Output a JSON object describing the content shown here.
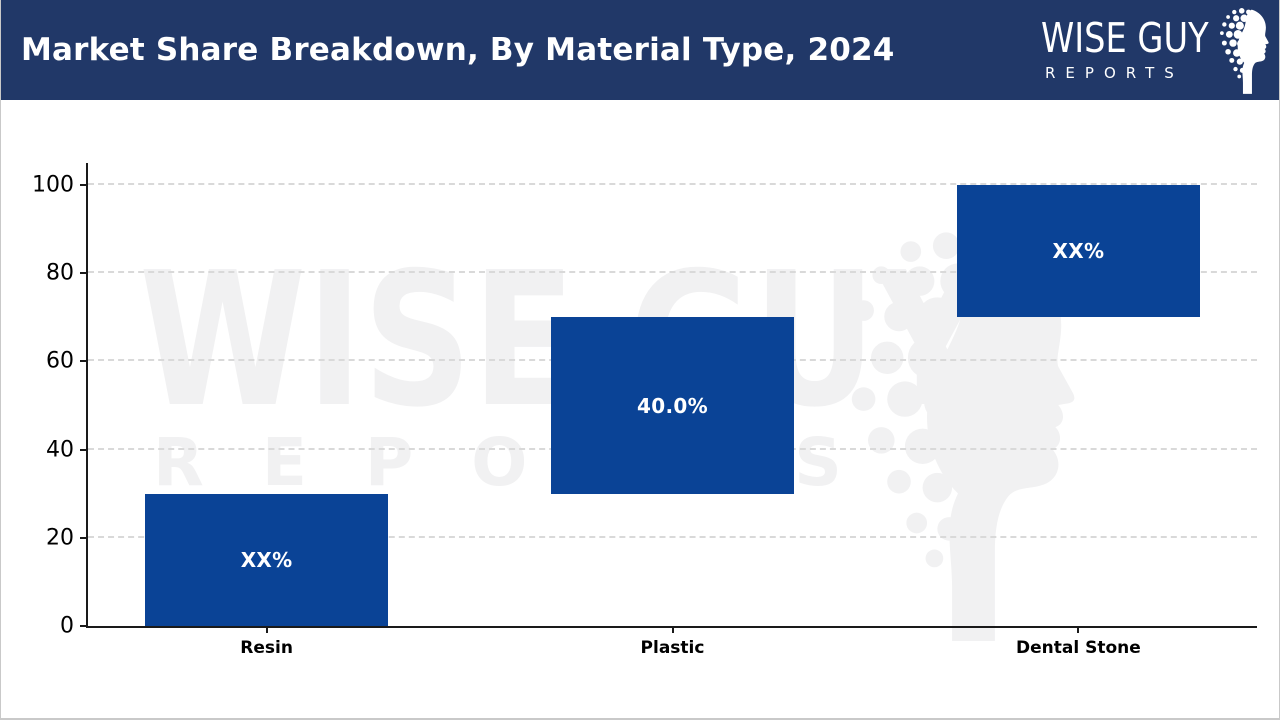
{
  "header": {
    "title": "Market Share Breakdown, By Material Type, 2024"
  },
  "logo": {
    "name": "WISE GUY",
    "tagline": "REPORTS"
  },
  "watermark": {
    "line1": "WISE GUY",
    "line2": "REPORTS"
  },
  "chart_data": {
    "type": "bar",
    "variant": "floating-segment-bar",
    "title": "Market Share Breakdown, By Material Type, 2024",
    "categories": [
      "Resin",
      "Plastic",
      "Dental Stone"
    ],
    "bars": [
      {
        "category": "Resin",
        "start": 0,
        "end": 30,
        "label": "XX%"
      },
      {
        "category": "Plastic",
        "start": 30,
        "end": 70,
        "label": "40.0%"
      },
      {
        "category": "Dental Stone",
        "start": 70,
        "end": 100,
        "label": "XX%"
      }
    ],
    "yticks": [
      0,
      20,
      40,
      60,
      80,
      100
    ],
    "ylim": [
      0,
      105
    ],
    "xlim": [
      -0.44,
      2.44
    ],
    "bar_width": 0.6,
    "xlabel": "",
    "ylabel": "",
    "grid": "horizontal-dashed",
    "legend_position": "none",
    "colors": {
      "bar": "#0a4396",
      "bar_label": "#ffffff",
      "grid": "#d9d9d9",
      "axis": "#1a1a1a",
      "tick_label": "#000000",
      "header_bg": "#213868",
      "header_text": "#ffffff",
      "watermark": "#f1f1f2",
      "frame_border": "#c9c9c9"
    }
  }
}
